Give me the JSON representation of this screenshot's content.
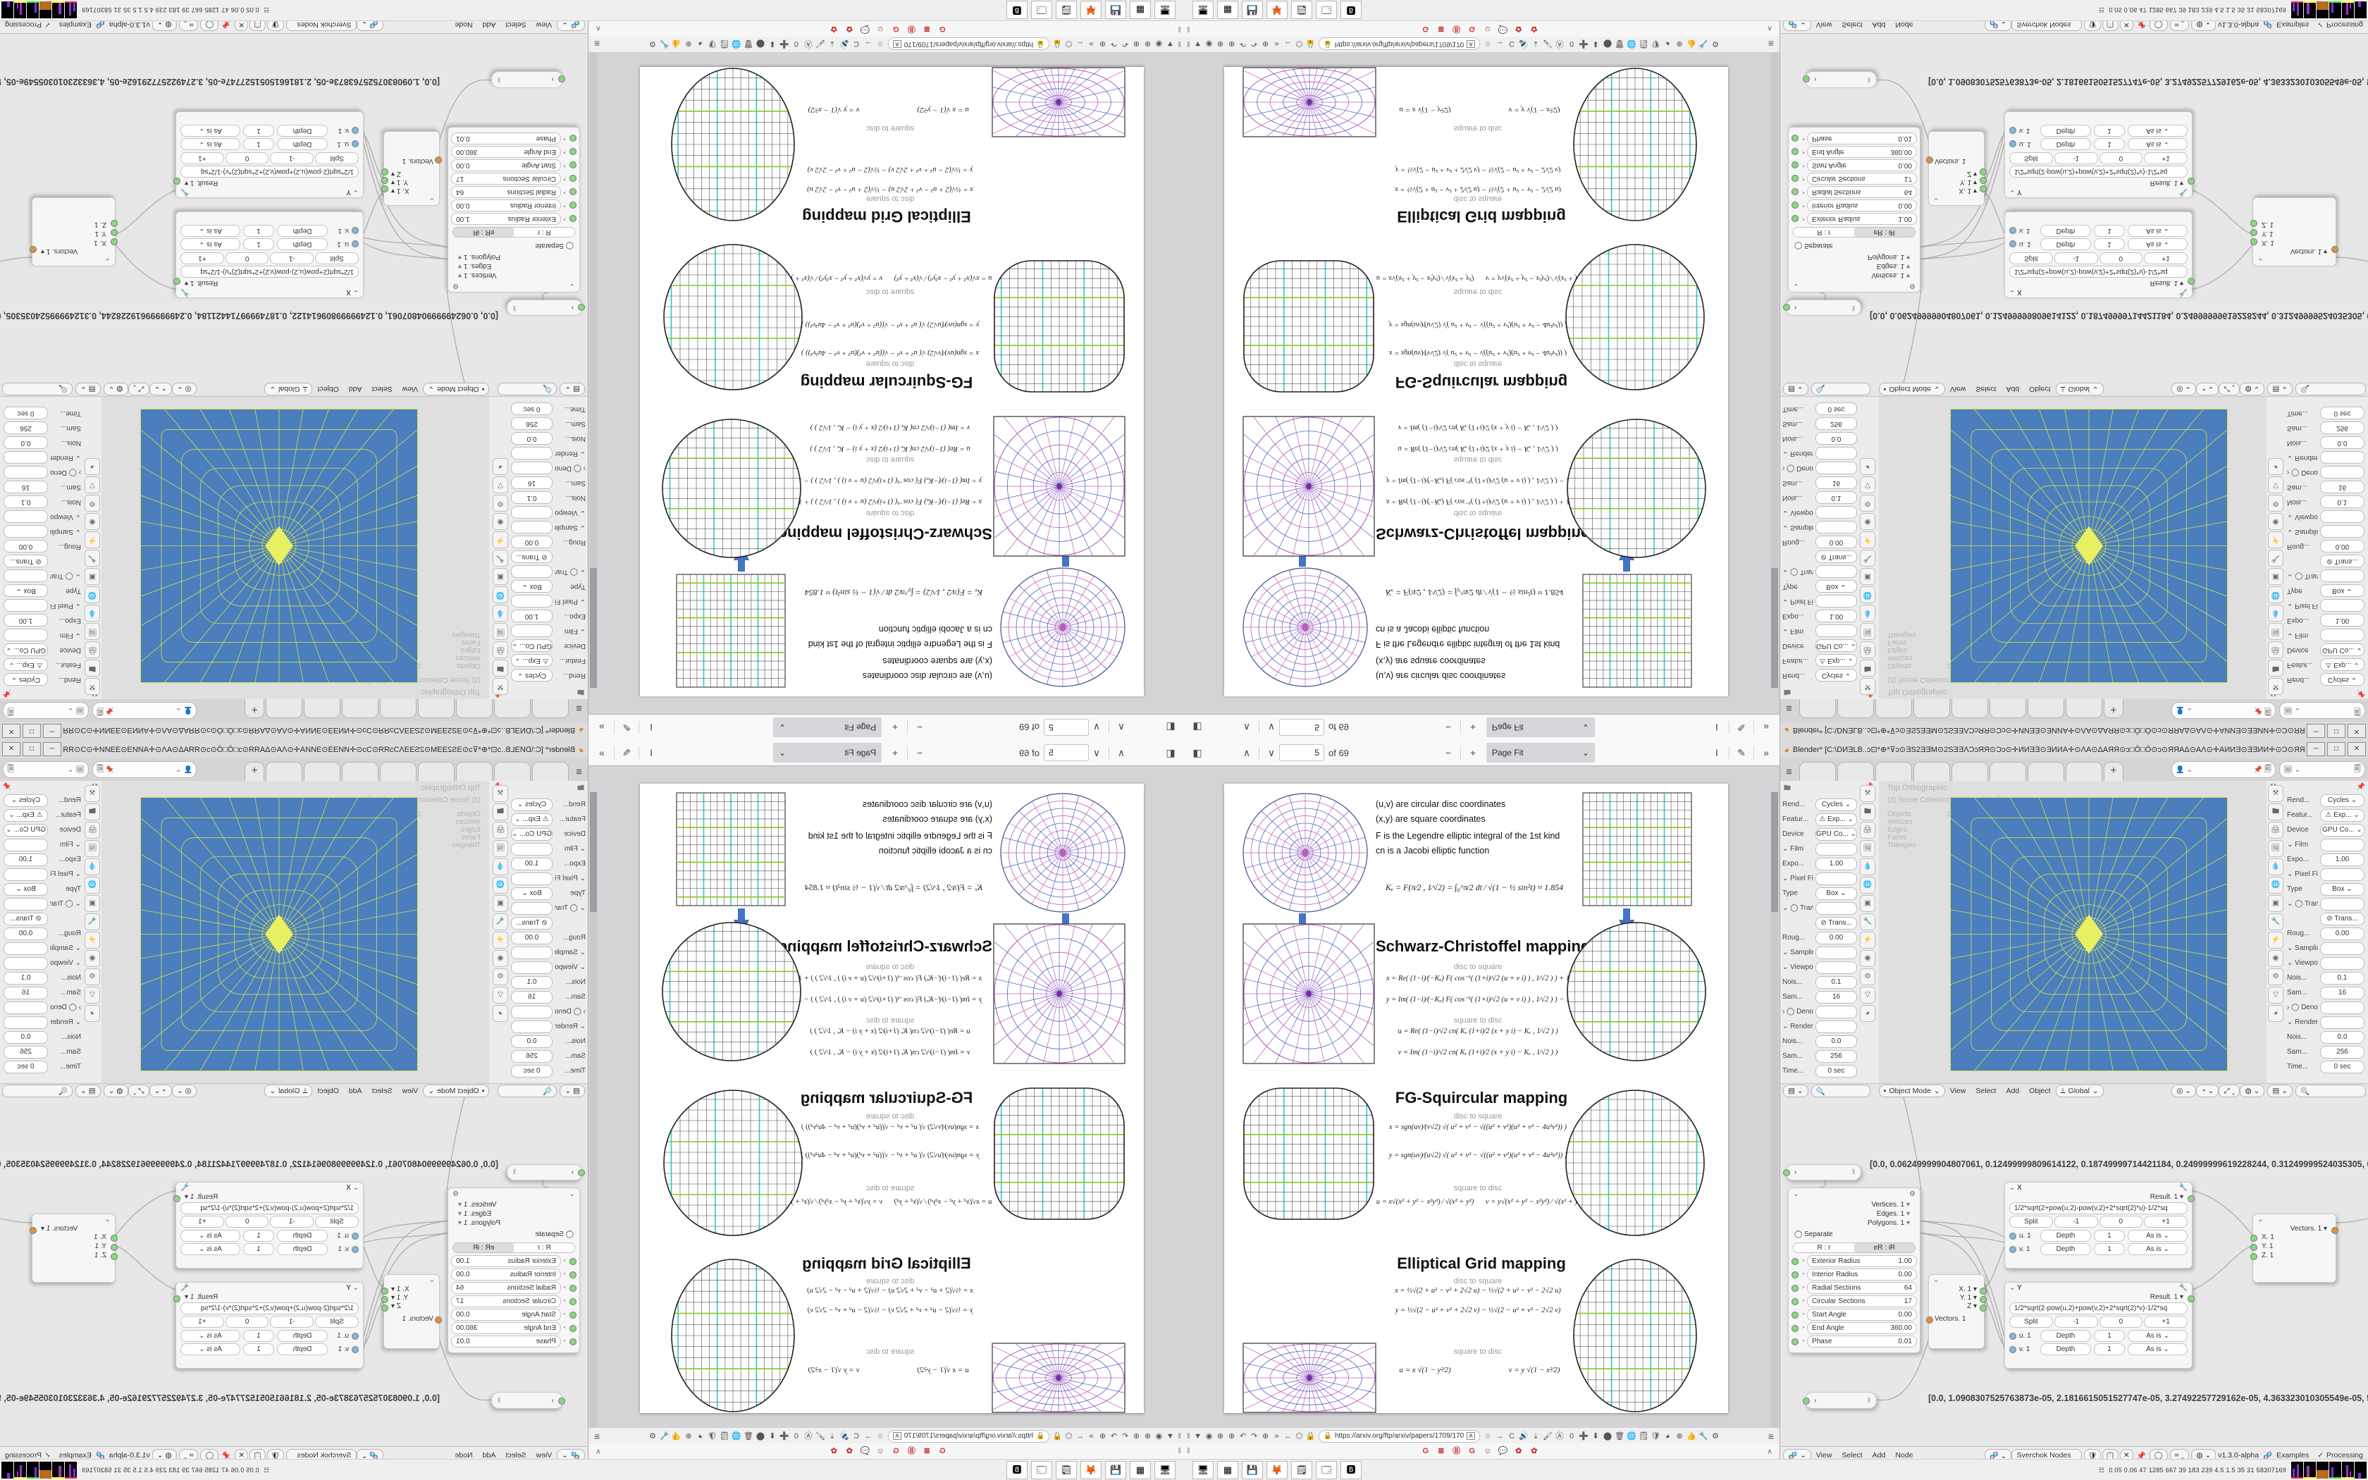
{
  "pdf": {
    "toolbar": {
      "sidebar_icon": "toggle-sidebar",
      "page_value": "5",
      "page_of": "of 69",
      "zoom_value": "Page Fit",
      "minus": "−",
      "plus": "+",
      "up": "∧",
      "down": "∨",
      "text_tool": "I",
      "draw_tool": "✎",
      "more": "»"
    },
    "page": {
      "intro_lines": [
        "(u,v)  are circular disc coordinates",
        "(x,y)  are square coordinates",
        "F  is the Legendre elliptic integral of the 1st kind",
        "cn  is a Jacobi elliptic function"
      ],
      "ke_formula": "Kₑ = F(π⁄2 , 1⁄√2) = ∫₀^π⁄2 dt ⁄ √(1 − ½ sin²t)  ≈ 1.854",
      "sections": [
        {
          "title": "Schwarz-Christoffel mapping",
          "disc_to_square": "disc to square",
          "square_to_disc": "square to disc",
          "fx": "x = Re( (1−i)⁄(−Kₑ) F( cos⁻¹( (1+i)⁄√2 (u + v i) ) , 1⁄√2 ) ) + 1",
          "fy": "y = Im( (1−i)⁄(−Kₑ) F( cos⁻¹( (1+i)⁄√2 (u + v i) ) , 1⁄√2 ) ) − 1",
          "fu": "u = Re( (1−i)⁄√2  cn( Kₑ (1+i)⁄2 (x + y i) − Kₑ , 1⁄√2 ) )",
          "fv": "v = Im( (1−i)⁄√2  cn( Kₑ (1+i)⁄2 (x + y i) − Kₑ , 1⁄√2 ) )"
        },
        {
          "title": "FG-Squircular mapping",
          "disc_to_square": "disc to square",
          "square_to_disc": "square to disc",
          "fx": "x = sgn(uv)⁄(v√2) √( u² + v² − √((u² + v²)(u² + v² − 4u²v²)) )",
          "fy": "y = sgn(uv)⁄(u√2) √( u² + v² − √((u² + v²)(u² + v² − 4u²v²)) )",
          "fu": "u = x√(x² + y² − x²y²) ⁄ √(x² + y²)",
          "fv": "v = y√(x² + y² − x²y²) ⁄ √(x² + y²)"
        },
        {
          "title": "Elliptical Grid mapping",
          "disc_to_square": "disc to square",
          "square_to_disc": "square to disc",
          "fx": "x = ½√(2 + u² − v² + 2√2 u) − ½√(2 + u² − v² − 2√2 u)",
          "fy": "y = ½√(2 − u² + v² + 2√2 v) − ½√(2 − u² + v² − 2√2 v)",
          "fu": "u = x √(1 − y²⁄2)",
          "fv": "v = y √(1 − x²⁄2)"
        }
      ]
    },
    "urlbar": {
      "handle": "‖",
      "left_icons": [
        "▼",
        "◉",
        "⊕",
        "⊕",
        "↶",
        "↷",
        "⊕",
        "»",
        "←",
        "⬠",
        "🔒"
      ],
      "url": "https://arxiv.org/ftp/arxiv/papers/1709/1709",
      "url_badge": "A",
      "right_icons": [
        "☆",
        "→",
        "C",
        "🔊",
        "⤓",
        "🖌",
        "Ⓐ",
        "0",
        "➕",
        "⬇",
        "⬤",
        "🗑",
        "🌐",
        "🗒",
        "🛡",
        "◕",
        "⊕",
        "👍",
        "🔧",
        "⚙"
      ],
      "menu": "≡"
    },
    "quickbar": {
      "handle": "‖",
      "icons": [
        "G",
        "≣",
        "Ⓑ",
        "G",
        "☺",
        "💬",
        "✿",
        "✿"
      ],
      "collapse": "∧"
    }
  },
  "blender": {
    "title": "Blender* [C:\\DИƎLB..ɔ⊡*⊕*⊽ɔ⊙ƎS2ƎƎM⊙2SƎƎΛƆɔЯЯ⊙Ɔɔ⊙✛ИИƎƎ⊙ƎИИA✛⊙ΛA⊙ΔAЯЯ⊙ɔ□Ö□Ö⊙ɔ⊙ЯЯAΔ⊙AΛ⊙✛AИИƎ⊙ƎƎИИ✛⊙Ɔ⊙ЯЯƆƆΛƎƎ2S⊙MƎƎ2S⅁⊙⊙*⊙*⊙...",
    "window_buttons": [
      "─",
      "□",
      "✕"
    ],
    "tabs": [
      "",
      "",
      "",
      "",
      "",
      "",
      "",
      ""
    ],
    "tab_plus": "+",
    "hamburger": "≡",
    "scene_selector_icon": "👤",
    "layer_selector_icon": "🖼",
    "props_rows": [
      {
        "label": "Rend...",
        "value": "Cycles ⌄"
      },
      {
        "label": "Featur...",
        "value": "⚠ Exp... ⌄"
      },
      {
        "label": "Device",
        "value": "GPU Co... ⌄"
      },
      {
        "label": "⌄ Film",
        "value": ""
      },
      {
        "label": "Expo...",
        "value": "1.00"
      },
      {
        "label": "⌄ Pixel Filter",
        "value": ""
      },
      {
        "label": "Type",
        "value": "Box ⌄"
      },
      {
        "label": "⌄ ◯ Transparent",
        "value": ""
      },
      {
        "label": "",
        "value": "⊘ Trans..."
      },
      {
        "label": "Roug...",
        "value": "0.00"
      },
      {
        "label": "⌄ Sampling",
        "value": ""
      },
      {
        "label": "⌄ Viewport ⠿",
        "value": ""
      },
      {
        "label": "Nois...",
        "value": "0.1"
      },
      {
        "label": "Sam...",
        "value": "16"
      },
      {
        "label": "› ◯ Denoise",
        "value": ""
      },
      {
        "label": "⌄ Render ⠿",
        "value": ""
      },
      {
        "label": "Nois...",
        "value": "0.0"
      },
      {
        "label": "Sam...",
        "value": "256"
      },
      {
        "label": "Time...",
        "value": "0 sec"
      }
    ],
    "props_tab_icons": [
      "⚒",
      "🖿",
      "🖨",
      "🖼",
      "💧",
      "🌐",
      "▣",
      "🔧",
      "⚡",
      "◉",
      "⚙",
      "▽",
      "◕"
    ],
    "viewport": {
      "view_label": "Top Orthographic",
      "collection_line": "(2) Scene Collection | ⊙ ⌗⊙⊙◯⊙◯⊙⊙⌗ ⊙",
      "stats": [
        {
          "label": "Objects",
          "value": "0 / 53"
        },
        {
          "label": "Vertices",
          "value": "0"
        },
        {
          "label": "Edges",
          "value": "0"
        },
        {
          "label": "Faces",
          "value": "0"
        },
        {
          "label": "Triangles",
          "value": "0"
        }
      ],
      "header": {
        "mode": "Object Mode",
        "menus": [
          "View",
          "Select",
          "Add",
          "Object"
        ],
        "orientation": "Global"
      }
    },
    "nodes": {
      "array1": "[0.0, 0.06249999904807061, 0.12499999809614122, 0.18749999714421184, 0.24999999619228244, 0.31249999524035305, 0.374…",
      "array2": "[0.0, 1.0908307525763873e-05, 2.1816615051527747e-05, 3.27492257729162e-05, 4.363323010305549e-05, 5.454153762881936…",
      "collapsed_pill": "›",
      "pause": "‖",
      "cylinder": {
        "outputs": [
          {
            "label": "Vertices. 1"
          },
          {
            "label": "Edges. 1"
          },
          {
            "label": "Polygons. 1"
          }
        ],
        "separate": "Separate",
        "toggle_left": "R : r",
        "toggle_right": "eR : iR",
        "fields": [
          {
            "label": "Exterior Radius",
            "value": "1.00"
          },
          {
            "label": "Interior Radius",
            "value": "0.00"
          },
          {
            "label": "Radial Sections",
            "value": "64"
          },
          {
            "label": "Circular Sections",
            "value": "17"
          },
          {
            "label": "Start Angle",
            "value": "0.00"
          },
          {
            "label": "End Angle",
            "value": "360.00"
          },
          {
            "label": "Phase",
            "value": "0.01"
          }
        ]
      },
      "vec_in": {
        "rows": [
          "X. 1 ▾",
          "Y. 1 ▾",
          "Z ▾"
        ],
        "out": "Vectors. 1"
      },
      "x_node": {
        "title": "X",
        "result": "Result. 1 ▾",
        "expr": "1/2*sqrt(2+pow(u,2)-pow(v,2)+2*sqrt(2)*u)-1/2*sq",
        "segs": [
          "Split",
          "-1",
          "0",
          "+1"
        ],
        "rows": [
          {
            "socket": "u. 1",
            "depth": "Depth",
            "val": "1",
            "mode": "As is ⌄"
          },
          {
            "socket": "v. 1",
            "depth": "Depth",
            "val": "1",
            "mode": "As is ⌄"
          }
        ]
      },
      "y_node": {
        "title": "Y",
        "result": "Result. 1 ▾",
        "expr": "1/2*sqrt(2-pow(u,2)+pow(v,2)+2*sqrt(2)*v)-1/2*sq",
        "segs": [
          "Split",
          "-1",
          "0",
          "+1"
        ],
        "rows": [
          {
            "socket": "u. 1",
            "depth": "Depth",
            "val": "1",
            "mode": "As is ⌄"
          },
          {
            "socket": "v. 1",
            "depth": "Depth",
            "val": "1",
            "mode": "As is ⌄"
          }
        ]
      },
      "vec_out": {
        "out": "Vectors. 1 ▾",
        "rows": [
          "X. 1",
          "Y. 1",
          "Z. 1"
        ]
      }
    },
    "node_header": {
      "editor_icon": "🧬",
      "menus": [
        "View",
        "Select",
        "Add",
        "Node"
      ],
      "tree_field": "Sverchok Nodes",
      "tree_icons": [
        "🛡",
        "📋",
        "✕"
      ],
      "pin": "📌",
      "version": "v1.3.0-alpha",
      "dna": "🧬",
      "examples": "Examples",
      "check": "✓",
      "processing": "Processing"
    }
  },
  "taskbar": {
    "apps": [
      {
        "glyph": "🖥",
        "color": "#5b7fa6"
      },
      {
        "glyph": "▦",
        "color": "#2f9e2f"
      },
      {
        "glyph": "💾",
        "color": "#3b43c4"
      },
      {
        "glyph": "🦊",
        "color": "#e66000"
      },
      {
        "glyph": "🗒",
        "color": "#9fc29f"
      },
      {
        "glyph": "🗔",
        "color": "#3d6fd6"
      },
      {
        "glyph": "🅱",
        "color": "#e87d0d"
      }
    ],
    "stats_icon": "☷",
    "stats": "0.05 0.06  47  1285 667  39  183  239  4.5  1.5  35  31  58307169"
  },
  "colors": {
    "accent_blue": "#4472c4",
    "render_blue": "#4a7ebd",
    "render_grid": "#d3e052",
    "cyan_line": "#3fc1c9",
    "green_line": "#8ac926",
    "magenta_line": "#c05bb6",
    "blue_line": "#5560c8",
    "socket_orange": "#e0913f",
    "socket_green": "#86d97c",
    "socket_blue": "#7fb8d8"
  }
}
